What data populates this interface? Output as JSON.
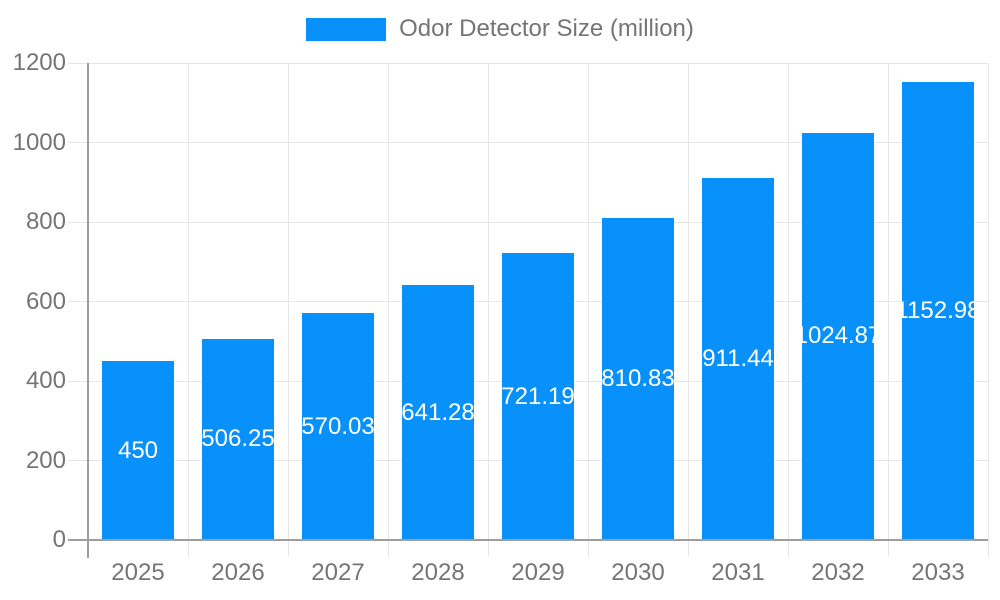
{
  "chart_data": {
    "type": "bar",
    "title": "",
    "legend": {
      "label": "Odor Detector Size (million)",
      "position": "top"
    },
    "categories": [
      "2025",
      "2026",
      "2027",
      "2028",
      "2029",
      "2030",
      "2031",
      "2032",
      "2033"
    ],
    "series": [
      {
        "name": "Odor Detector Size (million)",
        "values": [
          450,
          506.25,
          570.03,
          641.28,
          721.19,
          810.83,
          911.44,
          1024.87,
          1152.98
        ],
        "labels": [
          "450",
          "506.25",
          "570.03",
          "641.28",
          "721.19",
          "810.83",
          "911.44",
          "1024.87",
          "1152.98"
        ]
      }
    ],
    "xlabel": "",
    "ylabel": "",
    "ylim": [
      0,
      1200
    ],
    "yticks": [
      0,
      200,
      400,
      600,
      800,
      1000,
      1200
    ],
    "grid": true,
    "colors": {
      "bar": "#0991fb",
      "grid_line": "#e6e6e6",
      "axis_line": "#9e9e9e",
      "tick_label": "#757575",
      "legend_label": "#757575",
      "bar_value_label": "#ffffff"
    }
  }
}
